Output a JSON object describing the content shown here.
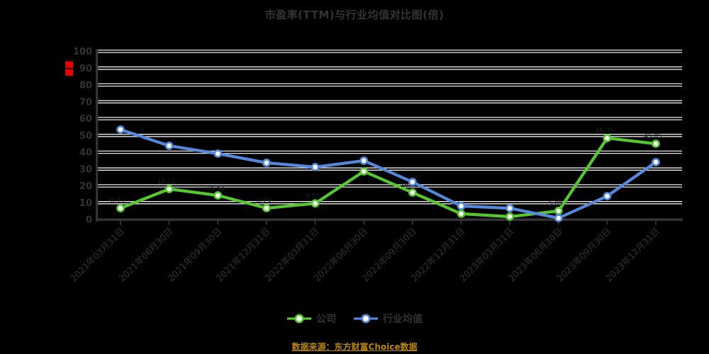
{
  "title": "市盈率(TTM)与行业均值对比图(倍)",
  "legend": {
    "items": [
      {
        "label": "公司",
        "color": "#55c72f"
      },
      {
        "label": "行业均值",
        "color": "#5587dc"
      }
    ]
  },
  "source_note": "数据来源：东方财富Choice数据",
  "colors": {
    "background": "#000000",
    "grid": "#ffffff",
    "axis": "#333333",
    "text": "#333333",
    "point_label": "#1e1e1e",
    "red_marker": "#e60000",
    "source": "#b8860b"
  },
  "y_axis": {
    "red_marker_near_value": 90
  },
  "chart_data": {
    "type": "line",
    "title": "市盈率(TTM)与行业均值对比图(倍)",
    "xlabel": "",
    "ylabel": "",
    "ylim": [
      0,
      100
    ],
    "y_ticks": [
      0,
      10,
      20,
      30,
      40,
      50,
      60,
      70,
      80,
      90,
      100
    ],
    "grid": true,
    "grid_style": "double-white-lines",
    "legend_position": "bottom",
    "marker": "circle-donut",
    "x_label_rotation": 45,
    "categories": [
      "2021年03月31日",
      "2021年06月30日",
      "2021年09月30日",
      "2021年12月31日",
      "2022年03月31日",
      "2022年06月30日",
      "2022年09月30日",
      "2022年12月31日",
      "2023年03月31日",
      "2023年06月30日",
      "2023年09月30日",
      "2023年12月31日"
    ],
    "series": [
      {
        "name": "公司",
        "color": "#55c72f",
        "point_labels": true,
        "values": [
          6.71,
          18.12,
          14.32,
          6.73,
          9.56,
          28.63,
          16.01,
          3.42,
          1.7,
          5.09,
          48.39,
          45.05
        ]
      },
      {
        "name": "行业均值",
        "color": "#5587dc",
        "point_labels": false,
        "values": [
          53.47,
          43.85,
          39.15,
          33.72,
          31.14,
          35.01,
          22.32,
          7.98,
          6.71,
          0.84,
          13.9,
          34.11
        ]
      }
    ]
  }
}
